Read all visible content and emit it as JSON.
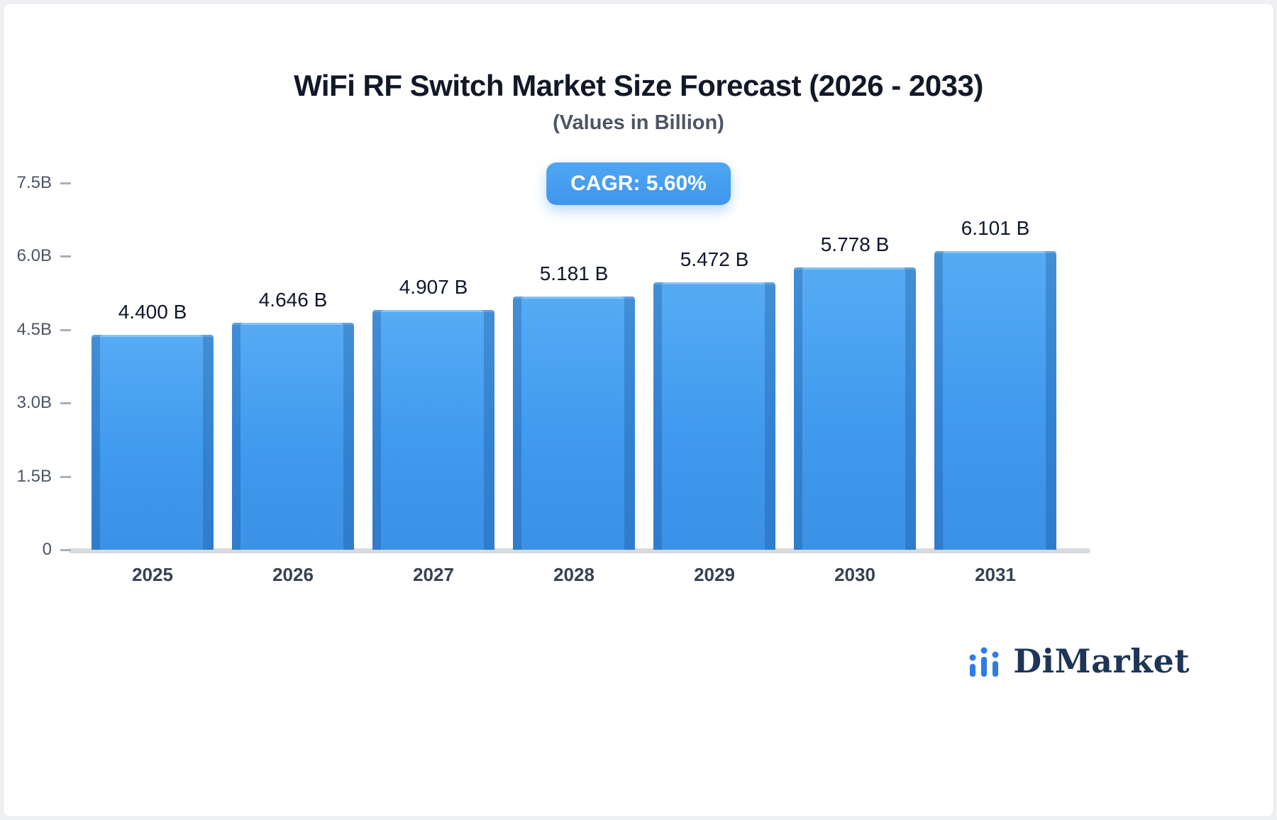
{
  "header": {
    "title": "WiFi RF Switch Market Size Forecast (2026 - 2033)",
    "subtitle": "(Values in Billion)",
    "cagr_label": "CAGR: 5.60%"
  },
  "brand": {
    "name": "DiMarket",
    "icon": "bar-chart-logo-icon",
    "icon_color": "#2e7ce4",
    "text_color": "#1d3557"
  },
  "colors": {
    "bar_main": "#409aee",
    "bar_edge": "#2b6cb0",
    "badge": "#459df0",
    "axis_text": "#4b5563",
    "baseline": "#d7dbe0"
  },
  "chart_data": {
    "type": "bar",
    "categories": [
      "2025",
      "2026",
      "2027",
      "2028",
      "2029",
      "2030",
      "2031"
    ],
    "values": [
      4.4,
      4.646,
      4.907,
      5.181,
      5.472,
      5.778,
      6.101
    ],
    "value_labels": [
      "4.400 B",
      "4.646 B",
      "4.907 B",
      "5.181 B",
      "5.472 B",
      "5.778 B",
      "6.101 B"
    ],
    "title": "WiFi RF Switch Market Size Forecast (2026 - 2033)",
    "subtitle": "(Values in Billion)",
    "xlabel": "",
    "ylabel": "",
    "ylim": [
      0,
      7.5
    ],
    "ytick_values": [
      0,
      1.5,
      3.0,
      4.5,
      6.0,
      7.5
    ],
    "ytick_labels": [
      "0",
      "1.5B",
      "3.0B",
      "4.5B",
      "6.0B",
      "7.5B"
    ],
    "grid": false,
    "legend": false,
    "annotation": "CAGR: 5.60%"
  }
}
